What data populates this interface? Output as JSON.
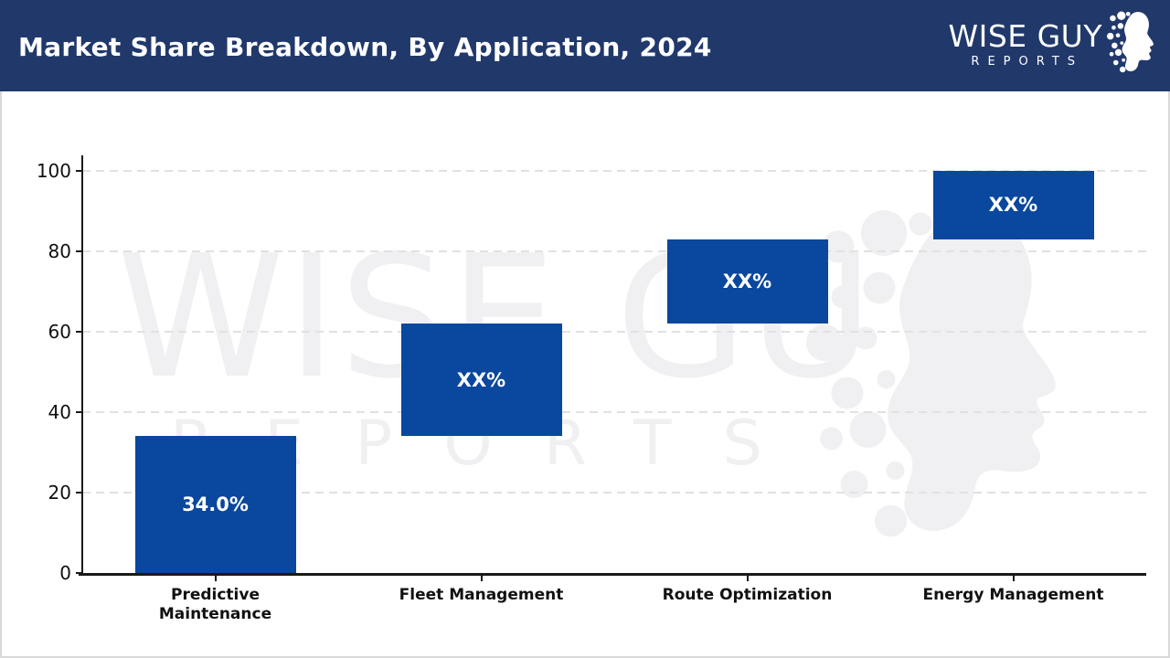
{
  "header": {
    "title": "Market Share Breakdown, By Application, 2024",
    "logo": {
      "name_line": "WISE GUY",
      "reports_line": "REPORTS"
    }
  },
  "watermark": {
    "name_line": "WISE GU",
    "reports_line": "REPORTS"
  },
  "chart_data": {
    "type": "bar",
    "variant": "waterfall",
    "title": "Market Share Breakdown, By Application, 2024",
    "categories": [
      "Predictive\nMaintenance",
      "Fleet Management",
      "Route Optimization",
      "Energy Management"
    ],
    "bars": [
      {
        "category": "Predictive Maintenance",
        "start": 0,
        "end": 34,
        "value": 34,
        "label": "34.0%"
      },
      {
        "category": "Fleet Management",
        "start": 34,
        "end": 62,
        "value": 28,
        "label": "XX%"
      },
      {
        "category": "Route Optimization",
        "start": 62,
        "end": 83,
        "value": 21,
        "label": "XX%"
      },
      {
        "category": "Energy Management",
        "start": 83,
        "end": 100,
        "value": 17,
        "label": "XX%"
      }
    ],
    "ylim": [
      0,
      100
    ],
    "yticks": [
      0,
      20,
      40,
      60,
      80,
      100
    ],
    "xlabel": "",
    "ylabel": "",
    "grid": true,
    "grid_style": "dashed",
    "legend": false,
    "bar_color": "#0a479e",
    "bar_label_color": "#ffffff"
  },
  "colors": {
    "header_bg": "#21386b",
    "bar": "#0a479e",
    "watermark": "#f0f0f2",
    "gridline": "#e1e1e1",
    "axis": "#1a1a1a",
    "border": "#d9d9d9"
  }
}
